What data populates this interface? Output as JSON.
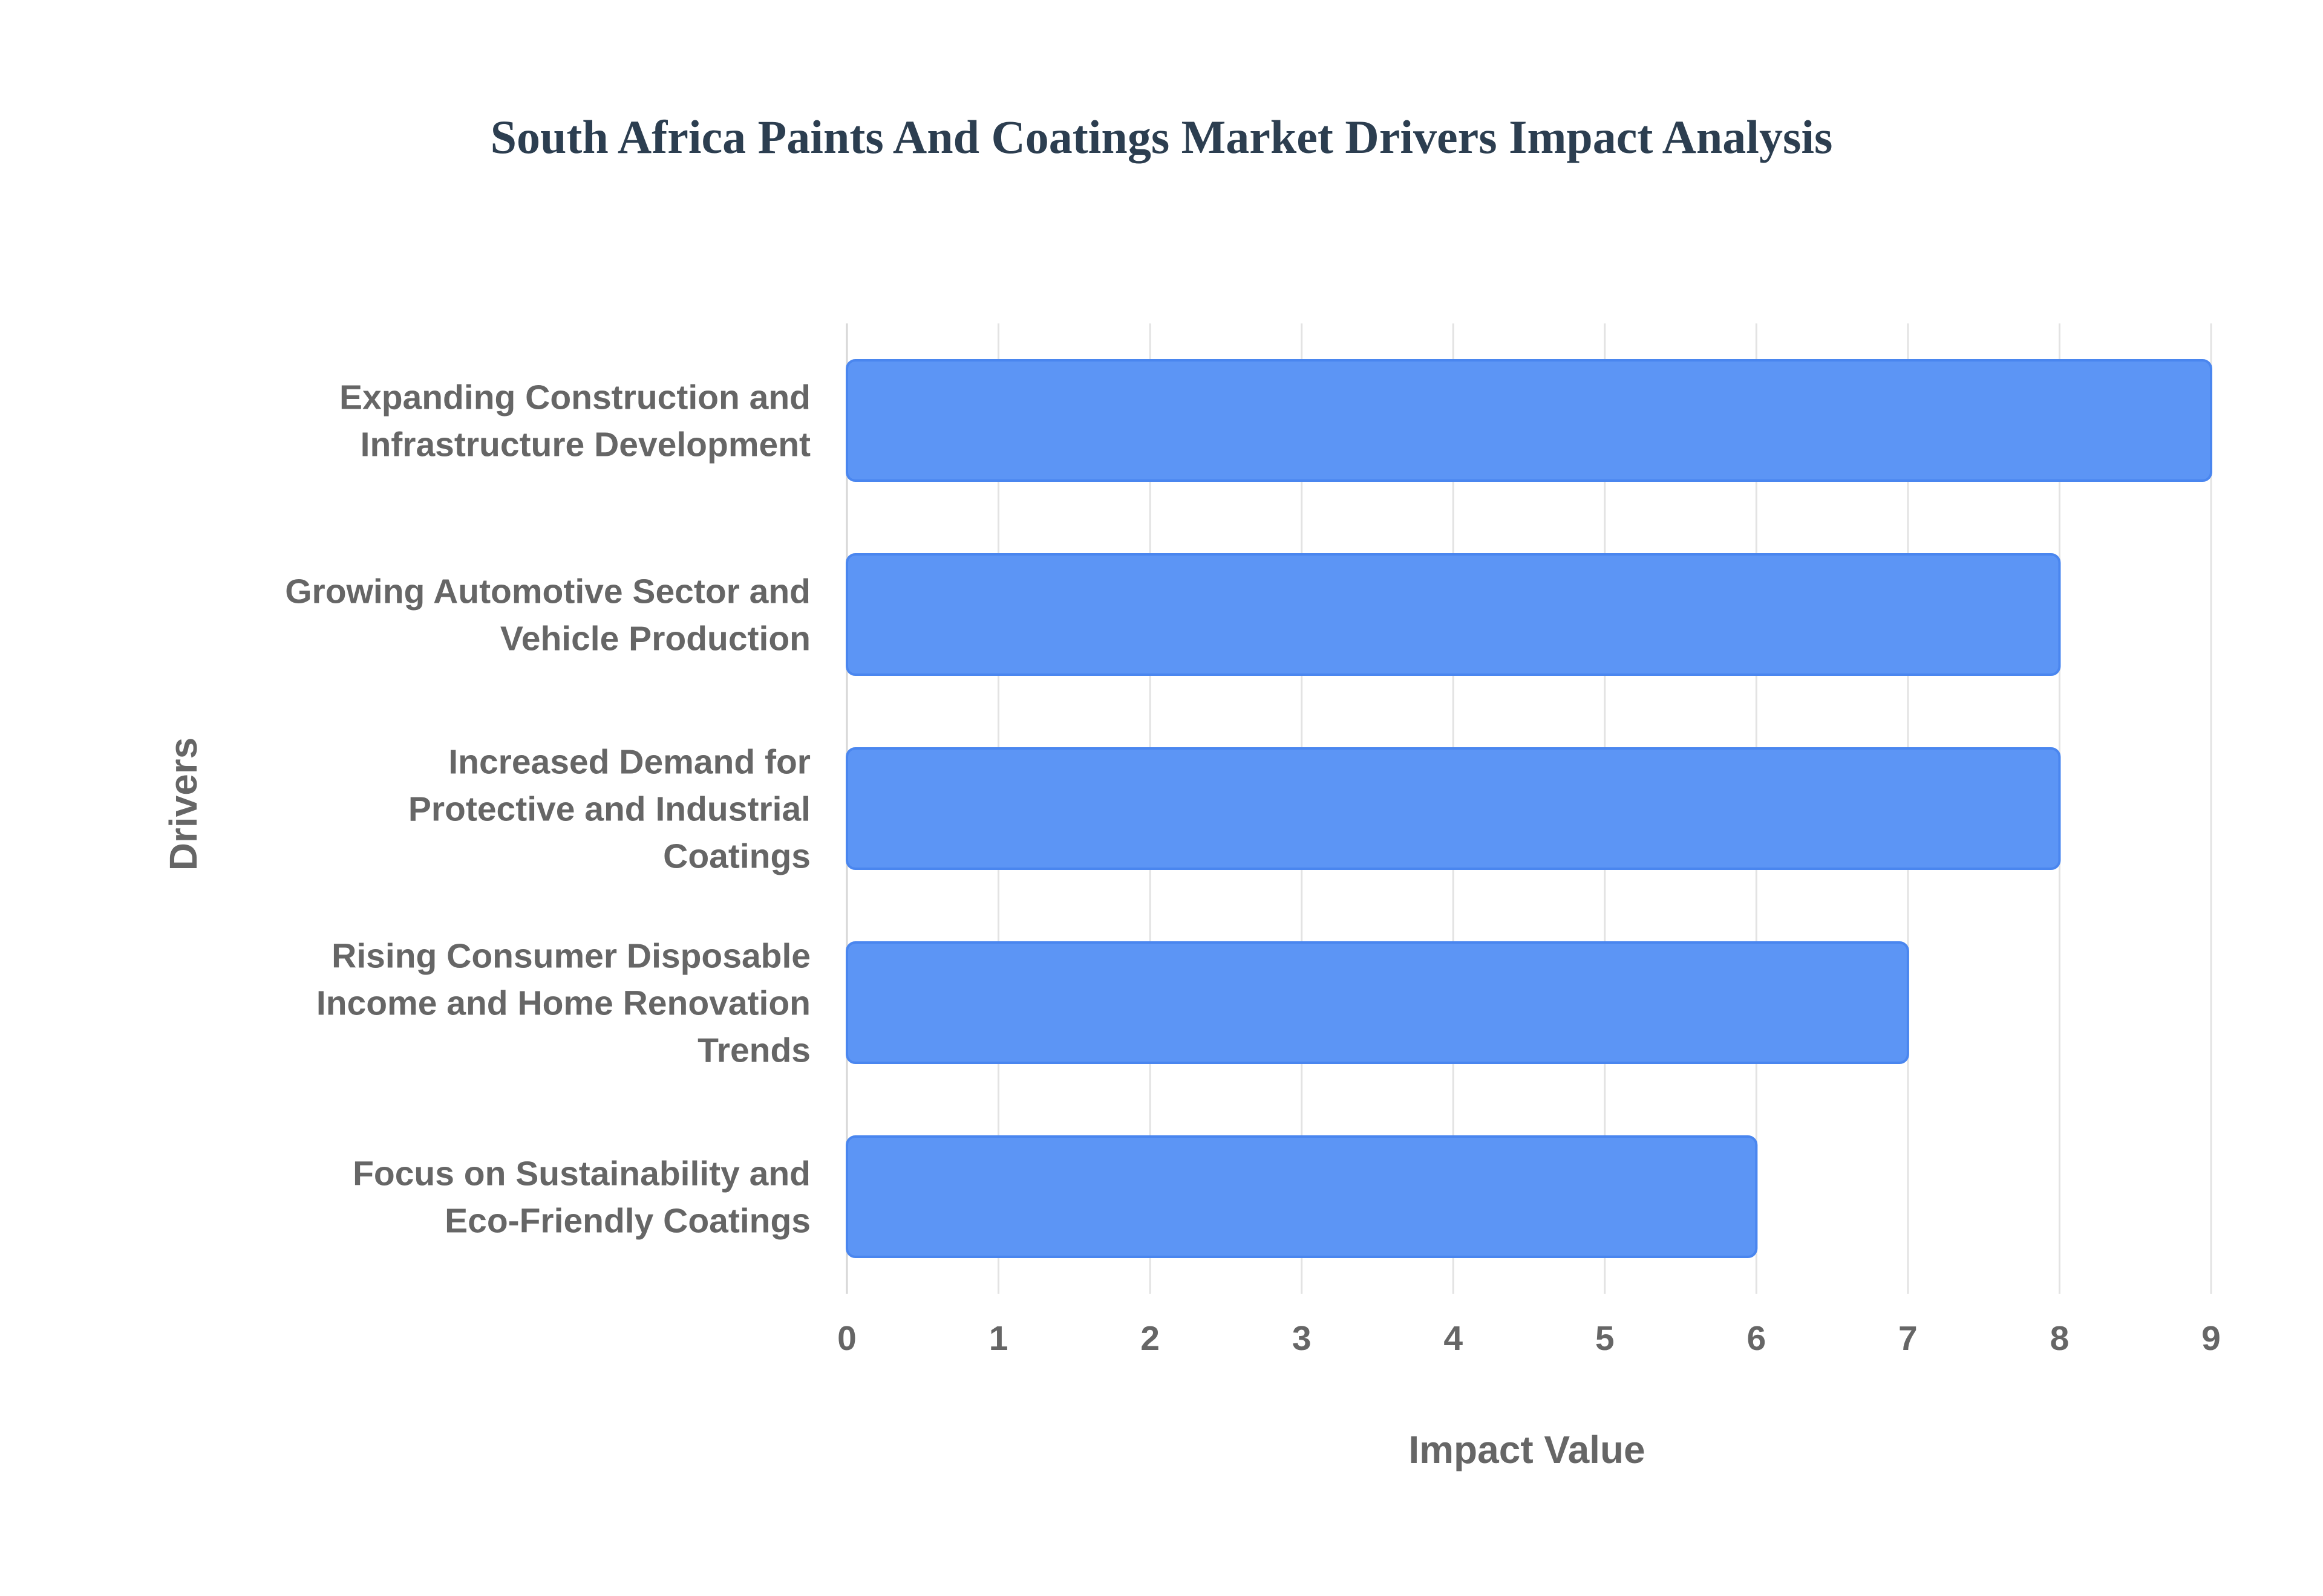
{
  "chart_data": {
    "type": "bar",
    "orientation": "horizontal",
    "title": "South Africa Paints And Coatings Market Drivers Impact Analysis",
    "xlabel": "Impact Value",
    "ylabel": "Drivers",
    "categories": [
      [
        "Expanding Construction and",
        "Infrastructure Development"
      ],
      [
        "Growing Automotive Sector and",
        "Vehicle Production"
      ],
      [
        "Increased Demand for",
        "Protective and Industrial",
        "Coatings"
      ],
      [
        "Rising Consumer Disposable",
        "Income and Home Renovation",
        "Trends"
      ],
      [
        "Focus on Sustainability and",
        "Eco-Friendly Coatings"
      ]
    ],
    "values": [
      9,
      8,
      8,
      7,
      6
    ],
    "xlim": [
      0,
      9
    ],
    "xticks": [
      "0",
      "1",
      "2",
      "3",
      "4",
      "5",
      "6",
      "7",
      "8",
      "9"
    ],
    "grid": true,
    "legend": "none",
    "colors": {
      "bar_fill": "#5c95f5",
      "bar_stroke": "#4a86ef",
      "title": "#2c3e50",
      "label": "#666666",
      "grid": "#e3e3e3"
    }
  }
}
